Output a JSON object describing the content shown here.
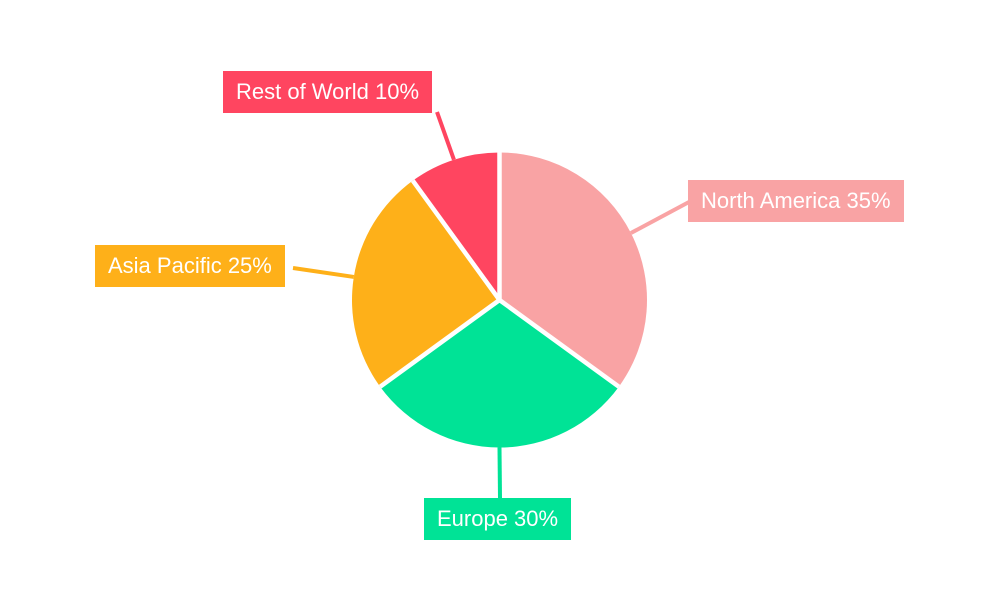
{
  "chart_data": {
    "type": "pie",
    "direction": "clockwise",
    "start_angle_deg": 0,
    "categories": [
      "North America",
      "Europe",
      "Asia Pacific",
      "Rest of World"
    ],
    "values": [
      35,
      30,
      25,
      10
    ],
    "unit": "%",
    "colors": [
      "#F9A3A4",
      "#00E396",
      "#FEB019",
      "#FF4560"
    ],
    "labels": [
      "North America 35%",
      "Europe 30%",
      "Asia Pacific 25%",
      "Rest of World 10%"
    ],
    "label_text_color": "#ffffff",
    "slice_divider_color": "#ffffff",
    "background": "#ffffff",
    "legend_position": "none"
  }
}
